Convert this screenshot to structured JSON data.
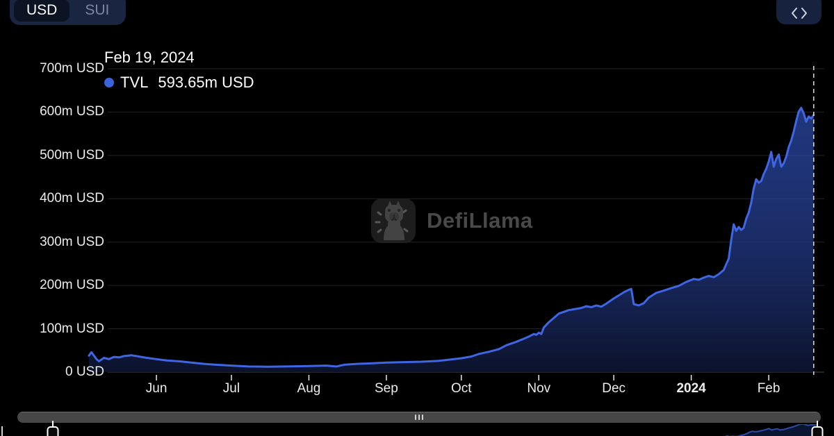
{
  "header": {
    "currency_toggle": {
      "options": [
        "USD",
        "SUI"
      ],
      "selected": "USD"
    },
    "embed_button": {
      "icon": "code-embed-icon"
    }
  },
  "tooltip": {
    "date": "Feb 19, 2024",
    "series_label": "TVL",
    "value": "593.65m USD",
    "marker_color": "#3a63de"
  },
  "watermark": {
    "text": "DefiLlama"
  },
  "colors": {
    "line": "#3f66e4",
    "area_top": "rgba(58,98,224,0.55)",
    "area_bottom": "rgba(12,19,46,0.95)",
    "grid": "#232323",
    "axis": "#4a4a4a",
    "tick": "#e8e8e8",
    "highlight_line": "#e8e8e8",
    "nav_line": "#2c4da8"
  },
  "chart_data": {
    "type": "area",
    "title": "",
    "xlabel": "",
    "ylabel": "",
    "ylim": [
      0,
      700
    ],
    "grid": true,
    "legend_position": "tooltip",
    "x_domain": [
      "2023-05-05",
      "2024-02-21"
    ],
    "highlight_date": "2024-02-19",
    "yticks": [
      {
        "value": 0,
        "label": "0 USD"
      },
      {
        "value": 100,
        "label": "100m USD"
      },
      {
        "value": 200,
        "label": "200m USD"
      },
      {
        "value": 300,
        "label": "300m USD"
      },
      {
        "value": 400,
        "label": "400m USD"
      },
      {
        "value": 500,
        "label": "500m USD"
      },
      {
        "value": 600,
        "label": "600m USD"
      },
      {
        "value": 700,
        "label": "700m USD"
      }
    ],
    "xticks": [
      {
        "date": "2023-06-01",
        "label": "Jun"
      },
      {
        "date": "2023-07-01",
        "label": "Jul"
      },
      {
        "date": "2023-08-01",
        "label": "Aug"
      },
      {
        "date": "2023-09-01",
        "label": "Sep"
      },
      {
        "date": "2023-10-01",
        "label": "Oct"
      },
      {
        "date": "2023-11-01",
        "label": "Nov"
      },
      {
        "date": "2023-12-01",
        "label": "Dec"
      },
      {
        "date": "2024-01-01",
        "label": "2024",
        "emphasis": true
      },
      {
        "date": "2024-02-01",
        "label": "Feb"
      }
    ],
    "series": [
      {
        "name": "TVL",
        "unit": "m USD",
        "points": [
          [
            "2023-05-05",
            38
          ],
          [
            "2023-05-06",
            46
          ],
          [
            "2023-05-08",
            30
          ],
          [
            "2023-05-09",
            25
          ],
          [
            "2023-05-11",
            33
          ],
          [
            "2023-05-13",
            30
          ],
          [
            "2023-05-15",
            35
          ],
          [
            "2023-05-17",
            34
          ],
          [
            "2023-05-19",
            37
          ],
          [
            "2023-05-22",
            39
          ],
          [
            "2023-05-25",
            36
          ],
          [
            "2023-05-28",
            33
          ],
          [
            "2023-06-01",
            30
          ],
          [
            "2023-06-05",
            27
          ],
          [
            "2023-06-10",
            25
          ],
          [
            "2023-06-15",
            22
          ],
          [
            "2023-06-20",
            19
          ],
          [
            "2023-06-25",
            17
          ],
          [
            "2023-07-01",
            15
          ],
          [
            "2023-07-08",
            13
          ],
          [
            "2023-07-15",
            12.5
          ],
          [
            "2023-07-22",
            13
          ],
          [
            "2023-08-01",
            14
          ],
          [
            "2023-08-08",
            15
          ],
          [
            "2023-08-12",
            13
          ],
          [
            "2023-08-15",
            17
          ],
          [
            "2023-08-20",
            19
          ],
          [
            "2023-08-25",
            20
          ],
          [
            "2023-09-01",
            22
          ],
          [
            "2023-09-08",
            23
          ],
          [
            "2023-09-15",
            24
          ],
          [
            "2023-09-22",
            26
          ],
          [
            "2023-10-01",
            32
          ],
          [
            "2023-10-05",
            36
          ],
          [
            "2023-10-08",
            42
          ],
          [
            "2023-10-12",
            47
          ],
          [
            "2023-10-16",
            53
          ],
          [
            "2023-10-19",
            62
          ],
          [
            "2023-10-23",
            70
          ],
          [
            "2023-10-26",
            77
          ],
          [
            "2023-10-28",
            82
          ],
          [
            "2023-10-30",
            88
          ],
          [
            "2023-10-31",
            86
          ],
          [
            "2023-11-01",
            91
          ],
          [
            "2023-11-02",
            88
          ],
          [
            "2023-11-03",
            103
          ],
          [
            "2023-11-05",
            115
          ],
          [
            "2023-11-07",
            125
          ],
          [
            "2023-11-09",
            135
          ],
          [
            "2023-11-11",
            139
          ],
          [
            "2023-11-13",
            143
          ],
          [
            "2023-11-16",
            146
          ],
          [
            "2023-11-18",
            148
          ],
          [
            "2023-11-20",
            152
          ],
          [
            "2023-11-22",
            150
          ],
          [
            "2023-11-24",
            154
          ],
          [
            "2023-11-26",
            151
          ],
          [
            "2023-11-28",
            158
          ],
          [
            "2023-12-01",
            170
          ],
          [
            "2023-12-03",
            177
          ],
          [
            "2023-12-05",
            184
          ],
          [
            "2023-12-07",
            190
          ],
          [
            "2023-12-08",
            192
          ],
          [
            "2023-12-09",
            157
          ],
          [
            "2023-12-11",
            154
          ],
          [
            "2023-12-13",
            159
          ],
          [
            "2023-12-15",
            172
          ],
          [
            "2023-12-18",
            183
          ],
          [
            "2023-12-21",
            188
          ],
          [
            "2023-12-24",
            194
          ],
          [
            "2023-12-27",
            199
          ],
          [
            "2023-12-30",
            208
          ],
          [
            "2024-01-02",
            215
          ],
          [
            "2024-01-04",
            213
          ],
          [
            "2024-01-06",
            218
          ],
          [
            "2024-01-08",
            222
          ],
          [
            "2024-01-10",
            219
          ],
          [
            "2024-01-12",
            226
          ],
          [
            "2024-01-14",
            236
          ],
          [
            "2024-01-16",
            262
          ],
          [
            "2024-01-17",
            305
          ],
          [
            "2024-01-18",
            341
          ],
          [
            "2024-01-19",
            326
          ],
          [
            "2024-01-20",
            335
          ],
          [
            "2024-01-21",
            328
          ],
          [
            "2024-01-22",
            333
          ],
          [
            "2024-01-23",
            354
          ],
          [
            "2024-01-24",
            368
          ],
          [
            "2024-01-25",
            391
          ],
          [
            "2024-01-26",
            424
          ],
          [
            "2024-01-27",
            445
          ],
          [
            "2024-01-28",
            437
          ],
          [
            "2024-01-29",
            441
          ],
          [
            "2024-01-30",
            457
          ],
          [
            "2024-01-31",
            469
          ],
          [
            "2024-02-01",
            486
          ],
          [
            "2024-02-02",
            508
          ],
          [
            "2024-02-03",
            474
          ],
          [
            "2024-02-04",
            492
          ],
          [
            "2024-02-05",
            502
          ],
          [
            "2024-02-06",
            474
          ],
          [
            "2024-02-07",
            482
          ],
          [
            "2024-02-08",
            497
          ],
          [
            "2024-02-09",
            519
          ],
          [
            "2024-02-10",
            534
          ],
          [
            "2024-02-11",
            555
          ],
          [
            "2024-02-12",
            579
          ],
          [
            "2024-02-13",
            601
          ],
          [
            "2024-02-14",
            610
          ],
          [
            "2024-02-15",
            597
          ],
          [
            "2024-02-16",
            578
          ],
          [
            "2024-02-17",
            590
          ],
          [
            "2024-02-18",
            585
          ],
          [
            "2024-02-19",
            593.65
          ]
        ]
      }
    ]
  },
  "navigator": {
    "grip_icon": "drag-handle-icon",
    "handles": [
      "left",
      "right"
    ]
  }
}
